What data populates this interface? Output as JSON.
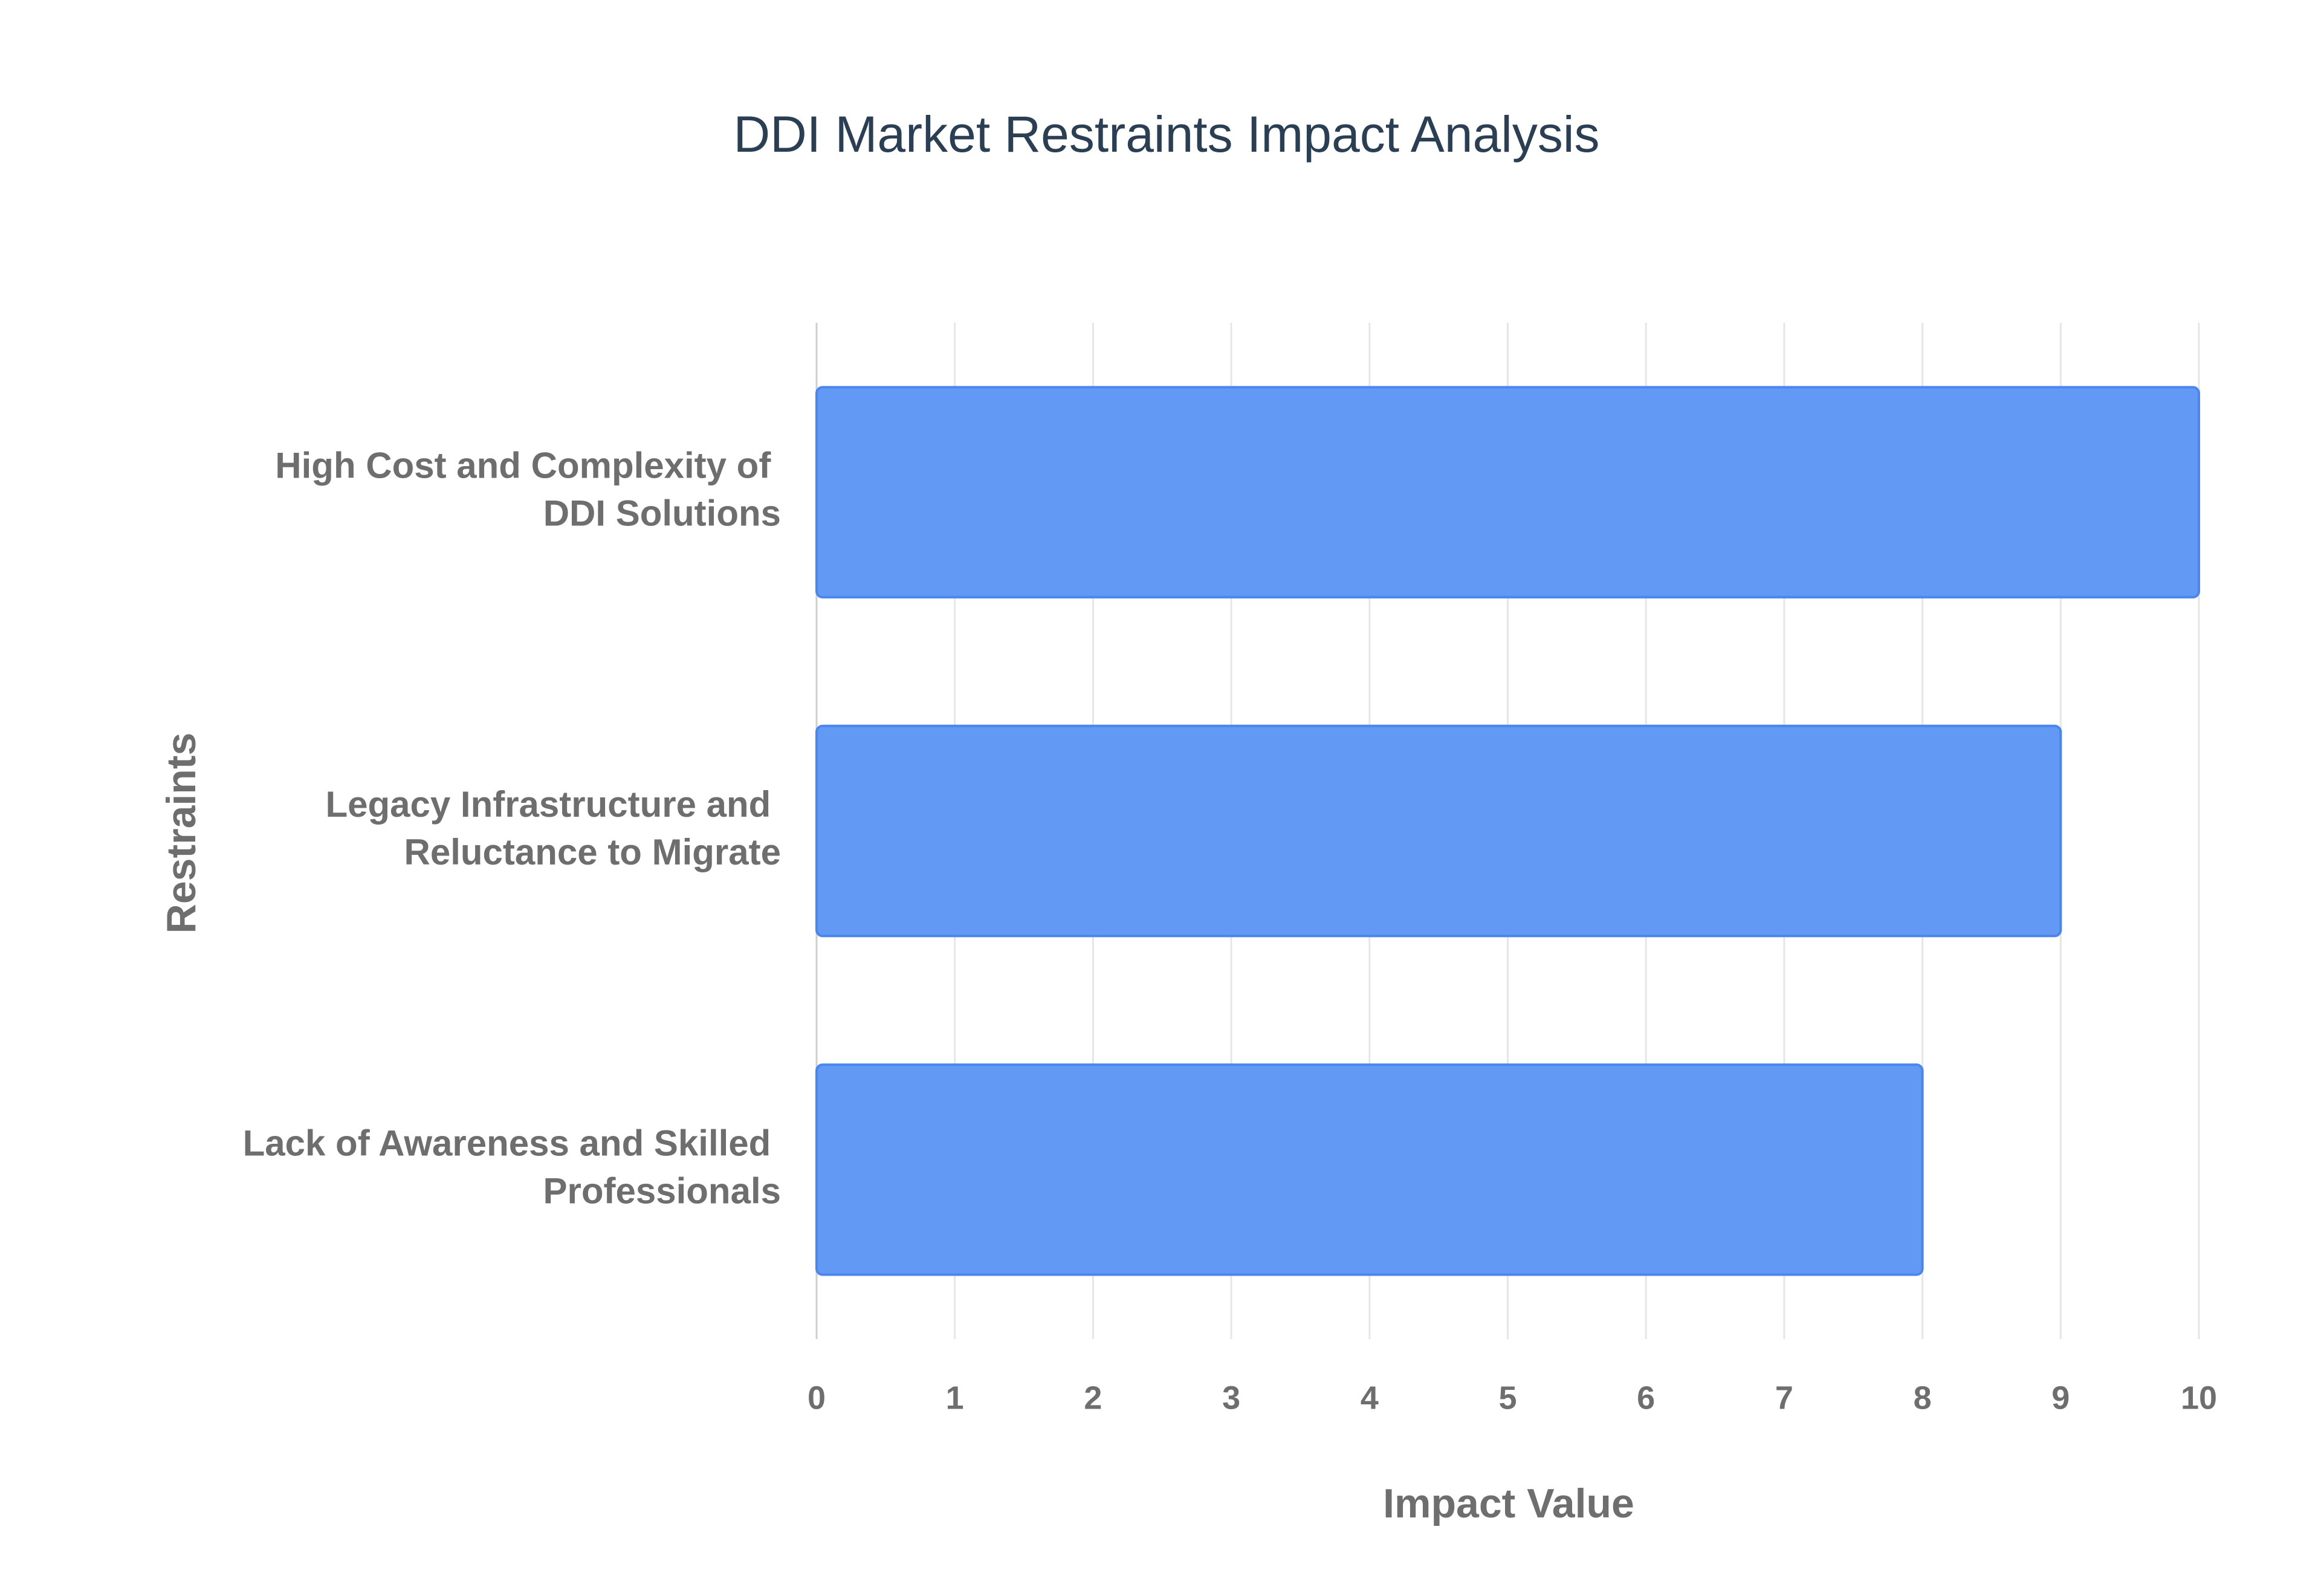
{
  "chart_data": {
    "type": "barh",
    "title": "DDI Market Restraints Impact Analysis",
    "categories": [
      "High Cost and Complexity of DDI Solutions",
      "Legacy Infrastructure and Reluctance to Migrate",
      "Lack of Awareness and Skilled Professionals"
    ],
    "values": [
      10,
      9,
      8
    ],
    "color": "#6199f5",
    "x_label": "Impact Value",
    "y_label": "Restraints",
    "xlim": [
      0,
      10
    ],
    "xticks": [
      0,
      1,
      2,
      3,
      4,
      5,
      6,
      7,
      8,
      9,
      10
    ],
    "grid": true
  }
}
